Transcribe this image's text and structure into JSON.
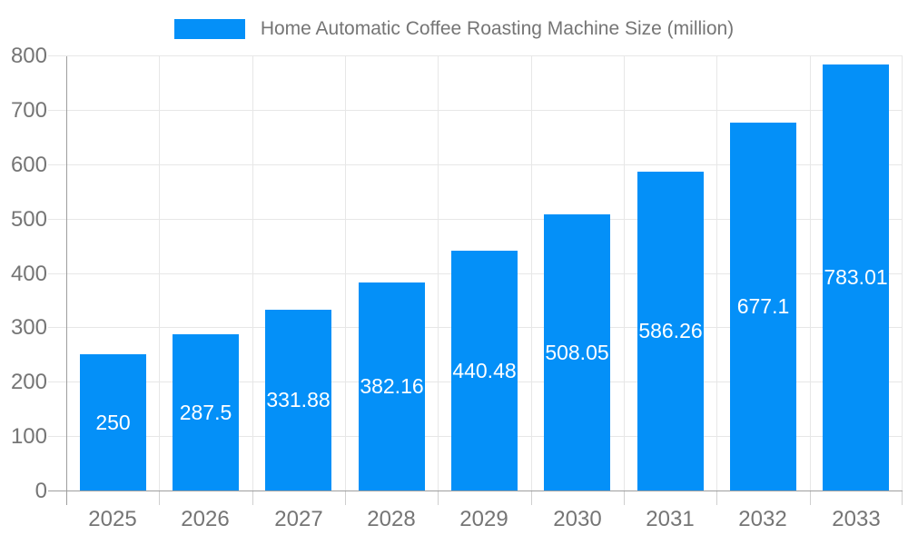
{
  "legend": {
    "title": "Home Automatic Coffee Roasting Machine Size (million)",
    "swatch_color": "#0490f8"
  },
  "colors": {
    "bar": "#0490f8",
    "bar_label": "#ffffff",
    "axis_line": "#9e9e9e",
    "gridline": "#e7e7e7",
    "tick": "#cfcfcf",
    "axis_label": "#757575",
    "background": "#ffffff"
  },
  "chart_data": {
    "type": "bar",
    "title": "Home Automatic Coffee Roasting Machine Size (million)",
    "categories": [
      "2025",
      "2026",
      "2027",
      "2028",
      "2029",
      "2030",
      "2031",
      "2032",
      "2033"
    ],
    "values": [
      250,
      287.5,
      331.88,
      382.16,
      440.48,
      508.05,
      586.26,
      677.1,
      783.01
    ],
    "value_labels": [
      "250",
      "287.5",
      "331.88",
      "382.16",
      "440.48",
      "508.05",
      "586.26",
      "677.1",
      "783.01"
    ],
    "xlabel": "",
    "ylabel": "",
    "ylim": [
      0,
      800
    ],
    "yticks": [
      0,
      100,
      200,
      300,
      400,
      500,
      600,
      700,
      800
    ],
    "grid": "horizontal and vertical light gray gridlines",
    "legend_position": "top-center",
    "data_labels": "white, centered inside bars"
  }
}
